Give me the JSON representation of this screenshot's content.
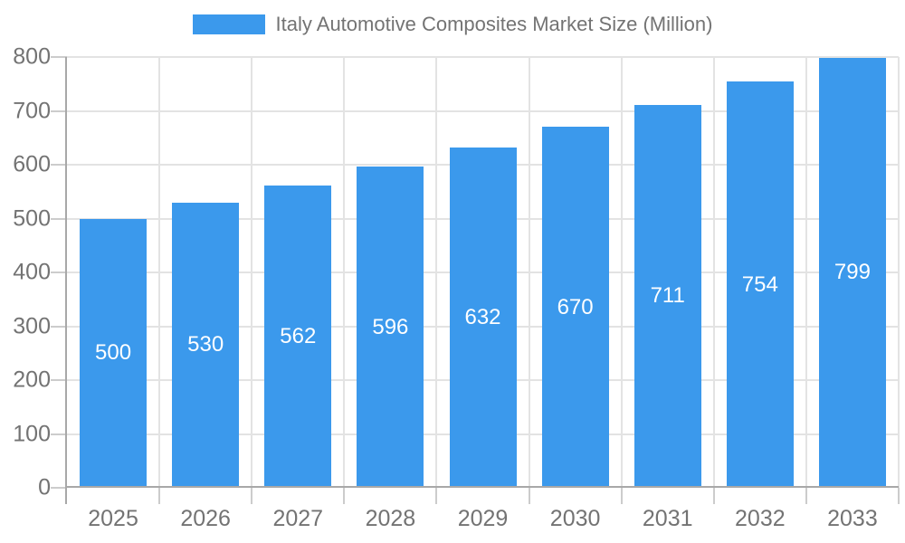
{
  "chart_data": {
    "type": "bar",
    "title": "Italy Automotive Composites Market Size (Million)",
    "legend_position": "top",
    "categories": [
      "2025",
      "2026",
      "2027",
      "2028",
      "2029",
      "2030",
      "2031",
      "2032",
      "2033"
    ],
    "series": [
      {
        "name": "Italy Automotive Composites Market Size (Million)",
        "values": [
          500,
          530,
          562,
          596,
          632,
          670,
          711,
          754,
          799
        ]
      }
    ],
    "value_labels": [
      "500",
      "530",
      "562",
      "596",
      "632",
      "670",
      "711",
      "754",
      "799"
    ],
    "xlabel": "",
    "ylabel": "",
    "ylim": [
      0,
      800
    ],
    "y_ticks": [
      0,
      100,
      200,
      300,
      400,
      500,
      600,
      700,
      800
    ],
    "grid": true,
    "colors": {
      "bar": "#3b99ec",
      "gridline": "#e3e3e3",
      "axis_line": "#a8a8a8",
      "tick_mark": "#cccccc",
      "axis_text": "#737373",
      "legend_text": "#737373",
      "value_text": "#ffffff"
    }
  }
}
